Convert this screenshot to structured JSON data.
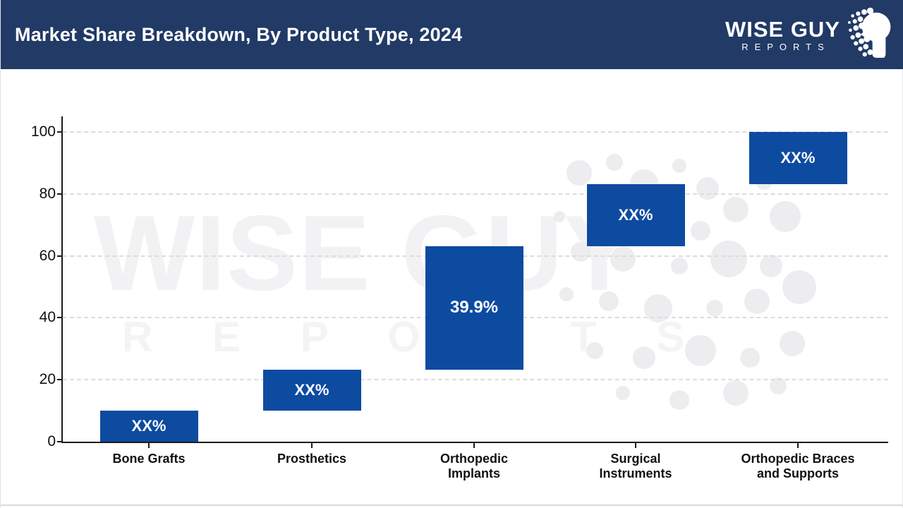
{
  "header": {
    "title": "Market Share Breakdown, By Product Type, 2024",
    "bg_color": "#213a66",
    "logo": {
      "line1": "WISE GUY",
      "line2": "REPORTS"
    }
  },
  "watermark": {
    "line1": "WISE GUY",
    "line2": "R E P O R T S"
  },
  "chart_data": {
    "type": "bar",
    "subtype": "waterfall",
    "title": "Market Share Breakdown, By Product Type, 2024",
    "categories": [
      "Bone Grafts",
      "Prosthetics",
      "Orthopedic Implants",
      "Surgical Instruments",
      "Orthopedic Braces and Supports"
    ],
    "category_label_lines": [
      [
        "Bone Grafts"
      ],
      [
        "Prosthetics"
      ],
      [
        "Orthopedic",
        "Implants"
      ],
      [
        "Surgical",
        "Instruments"
      ],
      [
        "Orthopedic Braces",
        "and Supports"
      ]
    ],
    "segments": [
      {
        "category": "Bone Grafts",
        "label": "XX%",
        "start": 0,
        "end": 10
      },
      {
        "category": "Prosthetics",
        "label": "XX%",
        "start": 10,
        "end": 23.3
      },
      {
        "category": "Orthopedic Implants",
        "label": "39.9%",
        "start": 23.3,
        "end": 63.2
      },
      {
        "category": "Surgical Instruments",
        "label": "XX%",
        "start": 63.2,
        "end": 83.1
      },
      {
        "category": "Orthopedic Braces and Supports",
        "label": "XX%",
        "start": 83.1,
        "end": 100
      }
    ],
    "yticks": [
      0,
      20,
      40,
      60,
      80,
      100
    ],
    "ylim": [
      0,
      100
    ],
    "xlabel": "",
    "ylabel": "",
    "grid": "dashed-horizontal",
    "legend": "none",
    "bar_color": "#0d4ba1",
    "grid_color": "#dcdcdc",
    "axis_color": "#1a1a1a"
  }
}
